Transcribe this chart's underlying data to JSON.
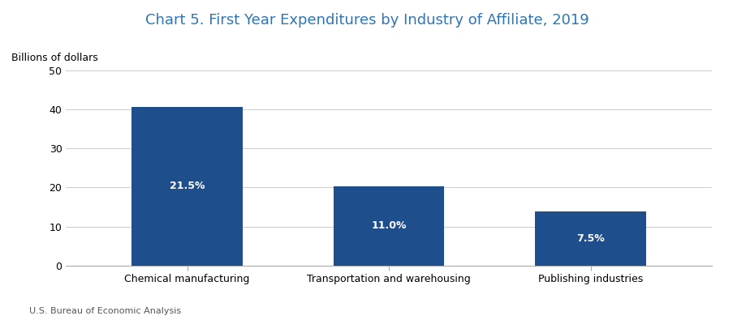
{
  "title": "Chart 5. First Year Expenditures by Industry of Affiliate, 2019",
  "ylabel": "Billions of dollars",
  "footnote": "U.S. Bureau of Economic Analysis",
  "categories": [
    "Chemical manufacturing",
    "Transportation and warehousing",
    "Publishing industries"
  ],
  "values": [
    40.7,
    20.3,
    13.9
  ],
  "labels": [
    "21.5%",
    "11.0%",
    "7.5%"
  ],
  "bar_color": "#1F4E8C",
  "label_color": "#FFFFFF",
  "title_color": "#2E75B6",
  "ylabel_fontsize": 9,
  "title_fontsize": 13,
  "tick_label_fontsize": 9,
  "bar_label_fontsize": 9,
  "footnote_fontsize": 8,
  "ylim": [
    0,
    50
  ],
  "yticks": [
    0,
    10,
    20,
    30,
    40,
    50
  ],
  "background_color": "#FFFFFF",
  "grid_color": "#CCCCCC",
  "bar_width": 0.55
}
